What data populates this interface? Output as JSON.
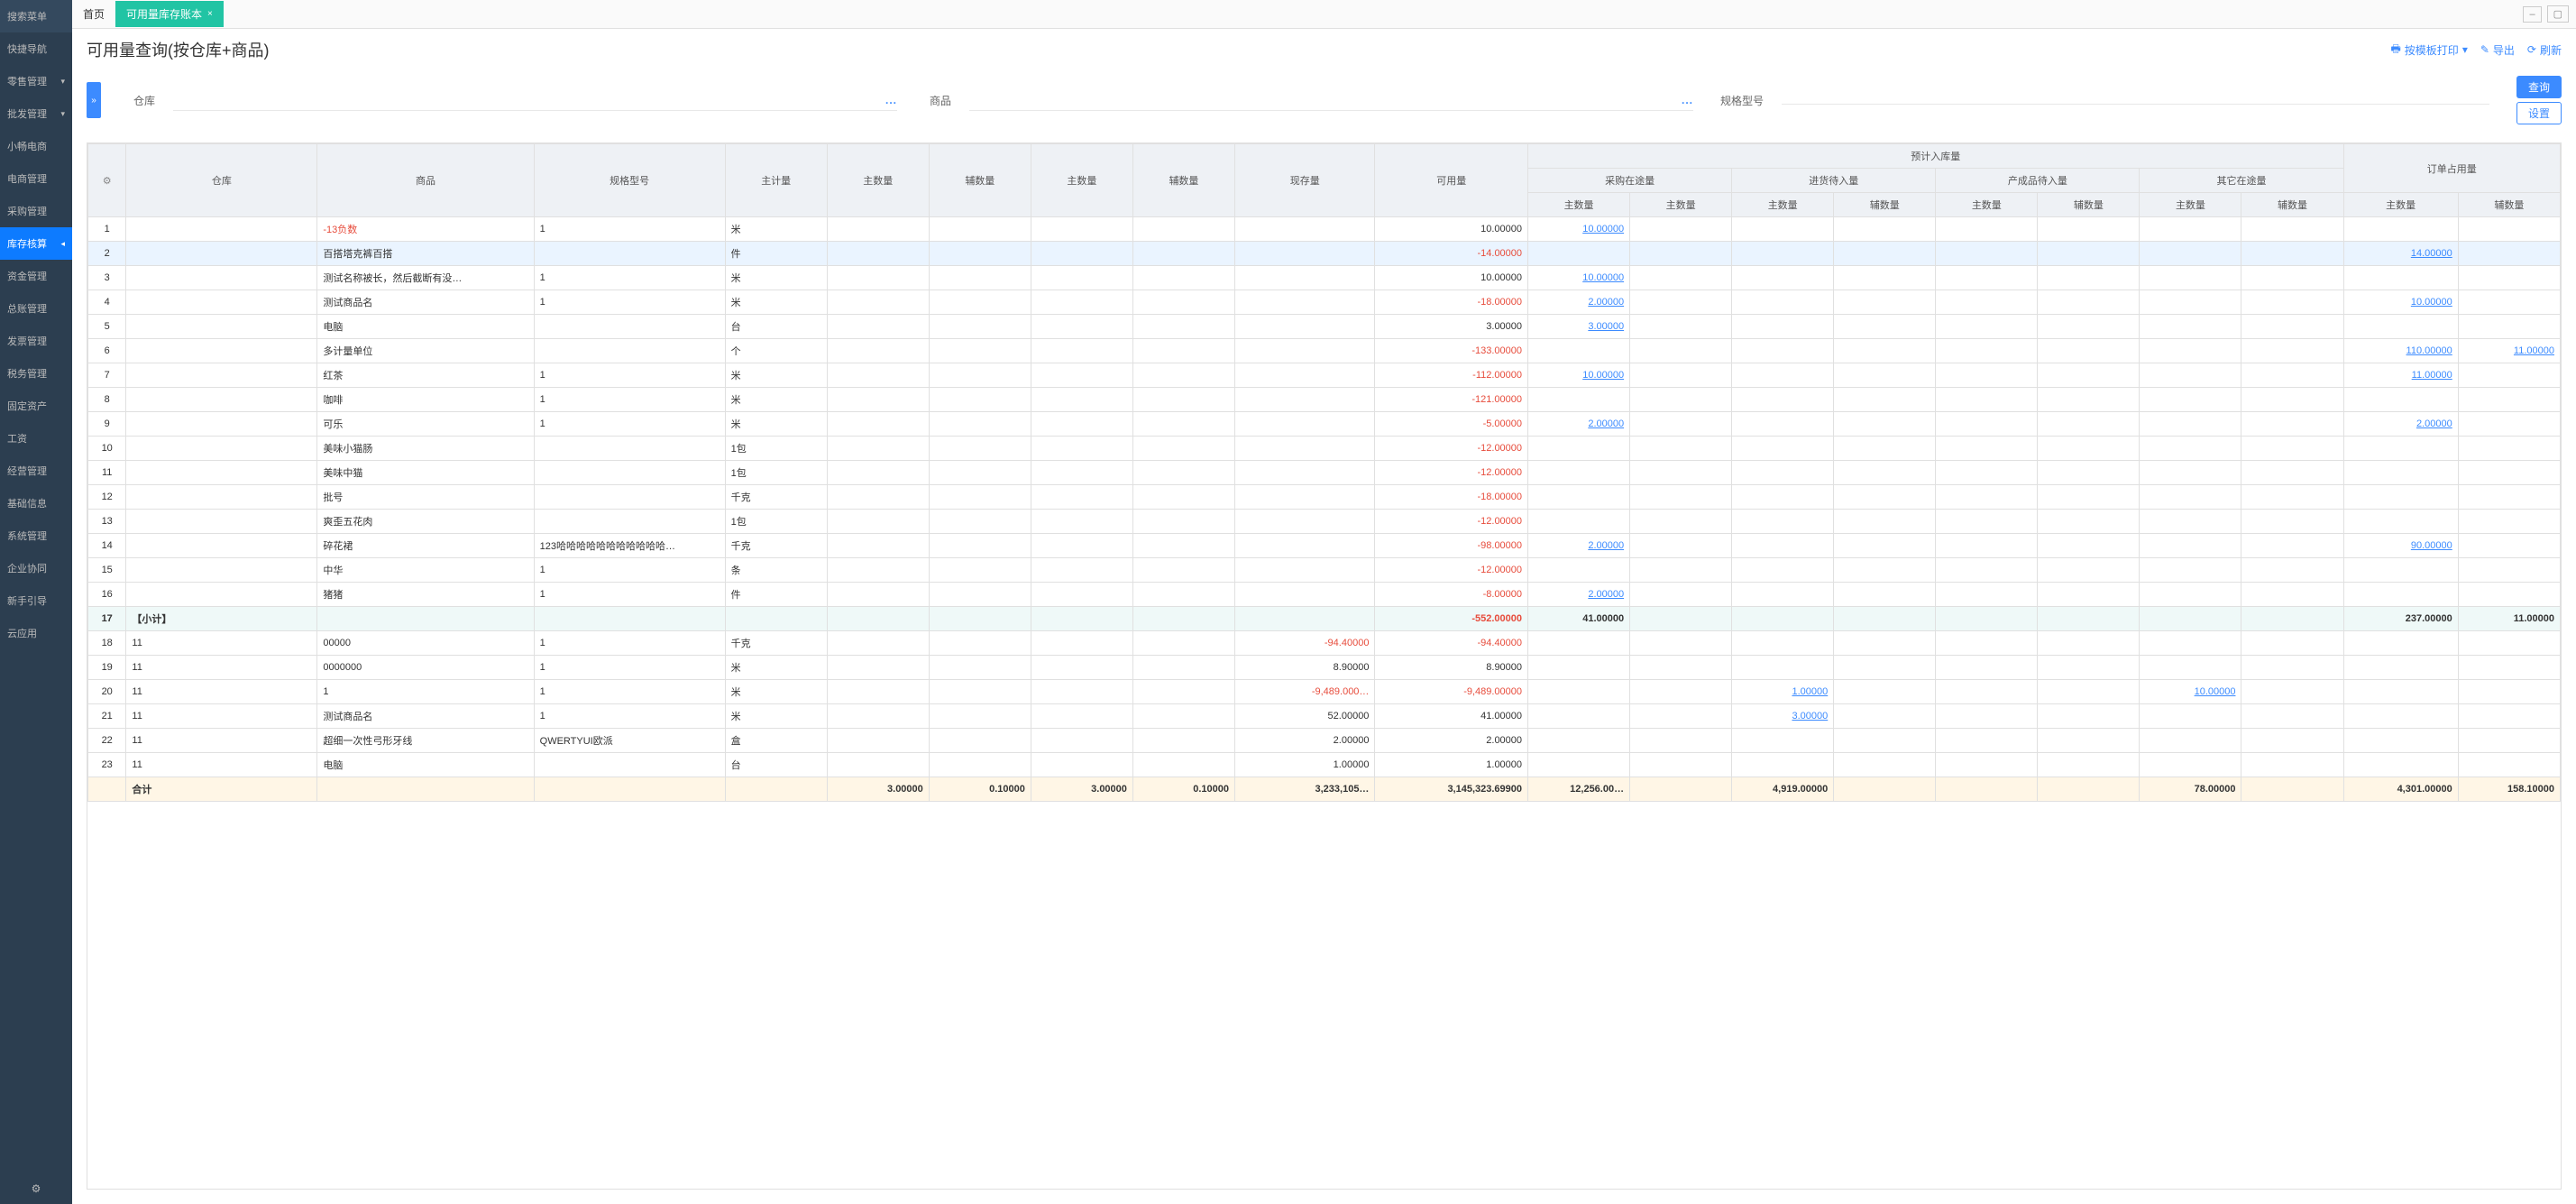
{
  "sidebar": {
    "items": [
      {
        "label": "搜索菜单",
        "chev": false
      },
      {
        "label": "快捷导航",
        "chev": false
      },
      {
        "label": "零售管理",
        "chev": true
      },
      {
        "label": "批发管理",
        "chev": true
      },
      {
        "label": "小畅电商",
        "chev": false
      },
      {
        "label": "电商管理",
        "chev": false
      },
      {
        "label": "采购管理",
        "chev": false
      },
      {
        "label": "库存核算",
        "chev": false,
        "active": true
      },
      {
        "label": "资金管理",
        "chev": false
      },
      {
        "label": "总账管理",
        "chev": false
      },
      {
        "label": "发票管理",
        "chev": false
      },
      {
        "label": "税务管理",
        "chev": false
      },
      {
        "label": "固定资产",
        "chev": false
      },
      {
        "label": "工资",
        "chev": false
      },
      {
        "label": "经营管理",
        "chev": false
      },
      {
        "label": "基础信息",
        "chev": false
      },
      {
        "label": "系统管理",
        "chev": false
      },
      {
        "label": "企业协同",
        "chev": false
      },
      {
        "label": "新手引导",
        "chev": false
      },
      {
        "label": "云应用",
        "chev": false
      }
    ]
  },
  "tabs": {
    "home": "首页",
    "active": "可用量库存账本",
    "close_x": "×"
  },
  "page": {
    "title": "可用量查询(按仓库+商品)",
    "actions": {
      "print": "按模板打印",
      "export": "导出",
      "refresh": "刷新"
    }
  },
  "filter": {
    "warehouse": "仓库",
    "product": "商品",
    "spec": "规格型号",
    "more": "...",
    "query": "查询",
    "settings": "设置"
  },
  "headers": {
    "gear": "⚙",
    "warehouse": "仓库",
    "product": "商品",
    "spec": "规格型号",
    "main_unit": "主计量",
    "main_qty": "主数量",
    "aux_qty": "辅数量",
    "main_qty2": "主数量",
    "aux_qty2": "辅数量",
    "stock": "现存量",
    "available": "可用量",
    "expected_in": "预计入库量",
    "purchase_transit": "采购在途量",
    "arrival_pending": "进货待入量",
    "finished_pending": "产成品待入量",
    "other_transit": "其它在途量",
    "order_occupied": "订单占用量"
  },
  "rows": [
    {
      "idx": "1",
      "wh": "",
      "prod": "-13负数",
      "prod_red": true,
      "spec": "1",
      "unit": "米",
      "avail": "10.00000",
      "pt_main": "10.00000",
      "pt_link": true
    },
    {
      "idx": "2",
      "wh": "",
      "prod": "百搭塔克裤百搭",
      "spec": "",
      "unit": "件",
      "avail": "-14.00000",
      "avail_neg": true,
      "oo_main": "14.00000",
      "oo_link": true,
      "highlight": true
    },
    {
      "idx": "3",
      "wh": "",
      "prod": "测试名称被长，然后截断有没…",
      "spec": "1",
      "unit": "米",
      "avail": "10.00000",
      "pt_main": "10.00000",
      "pt_link": true
    },
    {
      "idx": "4",
      "wh": "",
      "prod": "测试商品名",
      "spec": "1",
      "unit": "米",
      "avail": "-18.00000",
      "avail_neg": true,
      "pt_main": "2.00000",
      "pt_link": true,
      "oo_main": "10.00000",
      "oo_link": true
    },
    {
      "idx": "5",
      "wh": "",
      "prod": "电脑",
      "spec": "",
      "unit": "台",
      "avail": "3.00000",
      "pt_main": "3.00000",
      "pt_link": true
    },
    {
      "idx": "6",
      "wh": "",
      "prod": "多计量单位",
      "spec": "",
      "unit": "个",
      "avail": "-133.00000",
      "avail_neg": true,
      "oo_main": "110.00000",
      "oo_link": true,
      "oo_aux": "11.00000",
      "oo_aux_link": true
    },
    {
      "idx": "7",
      "wh": "",
      "prod": "红茶",
      "spec": "1",
      "unit": "米",
      "avail": "-112.00000",
      "avail_neg": true,
      "pt_main": "10.00000",
      "pt_link": true,
      "oo_main": "11.00000",
      "oo_link": true
    },
    {
      "idx": "8",
      "wh": "",
      "prod": "咖啡",
      "spec": "1",
      "unit": "米",
      "avail": "-121.00000",
      "avail_neg": true
    },
    {
      "idx": "9",
      "wh": "",
      "prod": "可乐",
      "spec": "1",
      "unit": "米",
      "avail": "-5.00000",
      "avail_neg": true,
      "pt_main": "2.00000",
      "pt_link": true,
      "oo_main": "2.00000",
      "oo_link": true
    },
    {
      "idx": "10",
      "wh": "",
      "prod": "美味小猫肠",
      "spec": "",
      "unit": "1包",
      "avail": "-12.00000",
      "avail_neg": true
    },
    {
      "idx": "11",
      "wh": "",
      "prod": "美味中猫",
      "spec": "",
      "unit": "1包",
      "avail": "-12.00000",
      "avail_neg": true
    },
    {
      "idx": "12",
      "wh": "",
      "prod": "批号",
      "spec": "",
      "unit": "千克",
      "avail": "-18.00000",
      "avail_neg": true
    },
    {
      "idx": "13",
      "wh": "",
      "prod": "爽歪五花肉",
      "spec": "",
      "unit": "1包",
      "avail": "-12.00000",
      "avail_neg": true
    },
    {
      "idx": "14",
      "wh": "",
      "prod": "碎花裙",
      "spec": "123哈哈哈哈哈哈哈哈哈哈哈…",
      "unit": "千克",
      "avail": "-98.00000",
      "avail_neg": true,
      "pt_main": "2.00000",
      "pt_link": true,
      "oo_main": "90.00000",
      "oo_link": true
    },
    {
      "idx": "15",
      "wh": "",
      "prod": "中华",
      "spec": "1",
      "unit": "条",
      "avail": "-12.00000",
      "avail_neg": true
    },
    {
      "idx": "16",
      "wh": "",
      "prod": "猪猪",
      "spec": "1",
      "unit": "件",
      "avail": "-8.00000",
      "avail_neg": true,
      "pt_main": "2.00000",
      "pt_link": true
    },
    {
      "idx": "17",
      "wh": "【小计】",
      "subtotal": true,
      "avail": "-552.00000",
      "avail_neg": true,
      "pt_main": "41.00000",
      "oo_main": "237.00000",
      "oo_aux": "11.00000"
    },
    {
      "idx": "18",
      "wh": "11",
      "prod": "00000",
      "spec": "1",
      "unit": "千克",
      "stock": "-94.40000",
      "stock_neg": true,
      "avail": "-94.40000",
      "avail_neg": true
    },
    {
      "idx": "19",
      "wh": "11",
      "prod": "0000000",
      "spec": "1",
      "unit": "米",
      "stock": "8.90000",
      "avail": "8.90000"
    },
    {
      "idx": "20",
      "wh": "11",
      "prod": "1",
      "spec": "1",
      "unit": "米",
      "stock": "-9,489.000…",
      "stock_neg": true,
      "avail": "-9,489.00000",
      "avail_neg": true,
      "ap_main": "1.00000",
      "ap_link": true,
      "ot_main": "10.00000",
      "ot_link": true
    },
    {
      "idx": "21",
      "wh": "11",
      "prod": "测试商品名",
      "spec": "1",
      "unit": "米",
      "stock": "52.00000",
      "avail": "41.00000",
      "ap_main": "3.00000",
      "ap_link": true
    },
    {
      "idx": "22",
      "wh": "11",
      "prod": "超细一次性弓形牙线",
      "spec": "QWERTYUI欧派",
      "unit": "盒",
      "stock": "2.00000",
      "avail": "2.00000"
    },
    {
      "idx": "23",
      "wh": "11",
      "prod": "电脑",
      "spec": "",
      "unit": "台",
      "stock": "1.00000",
      "avail": "1.00000"
    }
  ],
  "total": {
    "label": "合计",
    "main_qty": "3.00000",
    "aux_qty": "0.10000",
    "main_qty2": "3.00000",
    "aux_qty2": "0.10000",
    "stock": "3,233,105…",
    "avail": "3,145,323.69900",
    "pt_main": "12,256.00…",
    "ap_main": "4,919.00000",
    "ot_main": "78.00000",
    "oo_main": "4,301.00000",
    "oo_aux": "158.10000"
  }
}
